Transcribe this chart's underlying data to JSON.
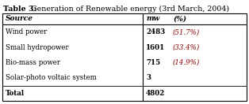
{
  "title_bold": "Table 3:",
  "title_rest": " Generation of Renewable energy (3rd March, 2004)",
  "col_headers": [
    "Source",
    "mw",
    "(%)"
  ],
  "rows": [
    [
      "Wind power",
      "2483",
      "(51.7%)"
    ],
    [
      "Small hydropower",
      "1601",
      "(33.4%)"
    ],
    [
      "Bio-mass power",
      "715",
      "(14.9%)"
    ],
    [
      "Solar-photo voltaic system",
      "3",
      ""
    ],
    [
      "Total",
      "4802",
      ""
    ]
  ],
  "bg_color": "#ffffff",
  "border_color": "#000000",
  "title_fontsize": 6.8,
  "header_fontsize": 6.5,
  "row_fontsize": 6.2,
  "percent_color": "#8B0000",
  "figwidth": 3.14,
  "figheight": 1.32,
  "dpi": 100
}
